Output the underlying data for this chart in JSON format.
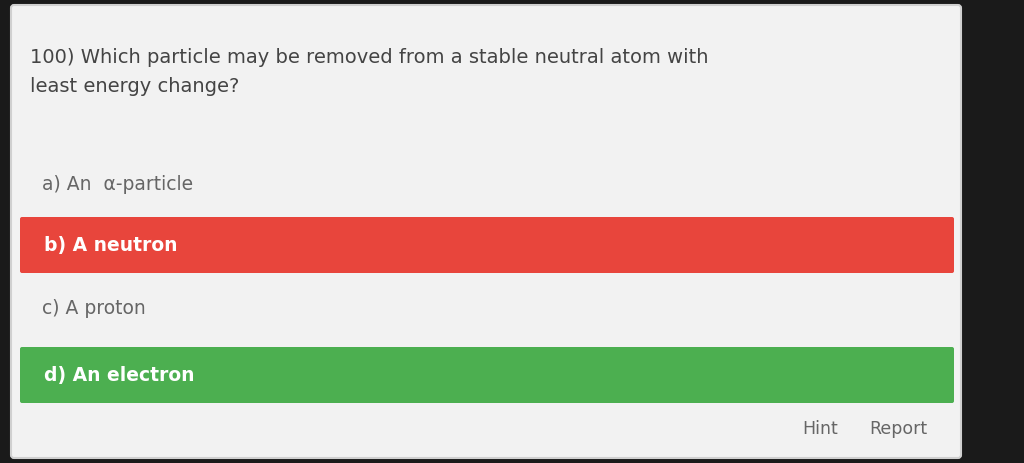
{
  "fig_bg": "#1a1a1a",
  "card_bg": "#f2f2f2",
  "card_border": "#d0d0d0",
  "question": "100) Which particle may be removed from a stable neutral atom with\nleast energy change?",
  "options": [
    {
      "label": "a) An  α-particle",
      "highlighted": false,
      "color": null,
      "text_color": "#666666"
    },
    {
      "label": "b) A neutron",
      "highlighted": true,
      "color": "#e8453c",
      "text_color": "#ffffff"
    },
    {
      "label": "c) A proton",
      "highlighted": false,
      "color": null,
      "text_color": "#666666"
    },
    {
      "label": "d) An electron",
      "highlighted": true,
      "color": "#4caf50",
      "text_color": "#ffffff"
    }
  ],
  "hint_text": "Hint",
  "report_text": "Report",
  "question_fontsize": 14,
  "option_fontsize": 13.5,
  "hint_report_fontsize": 12.5,
  "text_color_dark": "#444444",
  "text_color_hint": "#666666"
}
